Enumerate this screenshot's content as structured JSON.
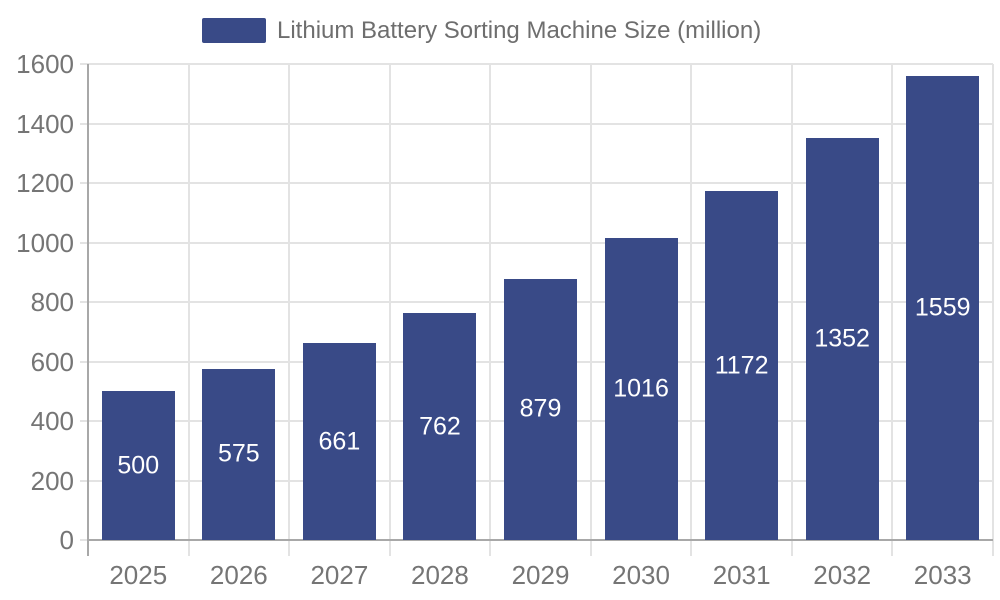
{
  "legend": {
    "label": "Lithium Battery Sorting Machine Size (million)"
  },
  "chart_data": {
    "type": "bar",
    "title": "Lithium Battery Sorting Machine Size (million)",
    "categories": [
      "2025",
      "2026",
      "2027",
      "2028",
      "2029",
      "2030",
      "2031",
      "2032",
      "2033"
    ],
    "series": [
      {
        "name": "Lithium Battery Sorting Machine Size (million)",
        "values": [
          500,
          575,
          661,
          762,
          879,
          1016,
          1172,
          1352,
          1559
        ]
      }
    ],
    "value_labels_shown": true,
    "value_label_position": "inside-center",
    "xlabel": "",
    "ylabel": "",
    "ylim": [
      0,
      1600
    ],
    "yticks": [
      0,
      200,
      400,
      600,
      800,
      1000,
      1200,
      1400,
      1600
    ],
    "grid": "on",
    "legend_position": "top",
    "colors": {
      "bar": "#394A87",
      "gridline": "#e3e3e3",
      "axis_line": "#a8a8a8",
      "axis_label": "#757575",
      "legend_text": "#6e6e6e",
      "value_label": "#ffffff",
      "background": "#ffffff"
    }
  }
}
